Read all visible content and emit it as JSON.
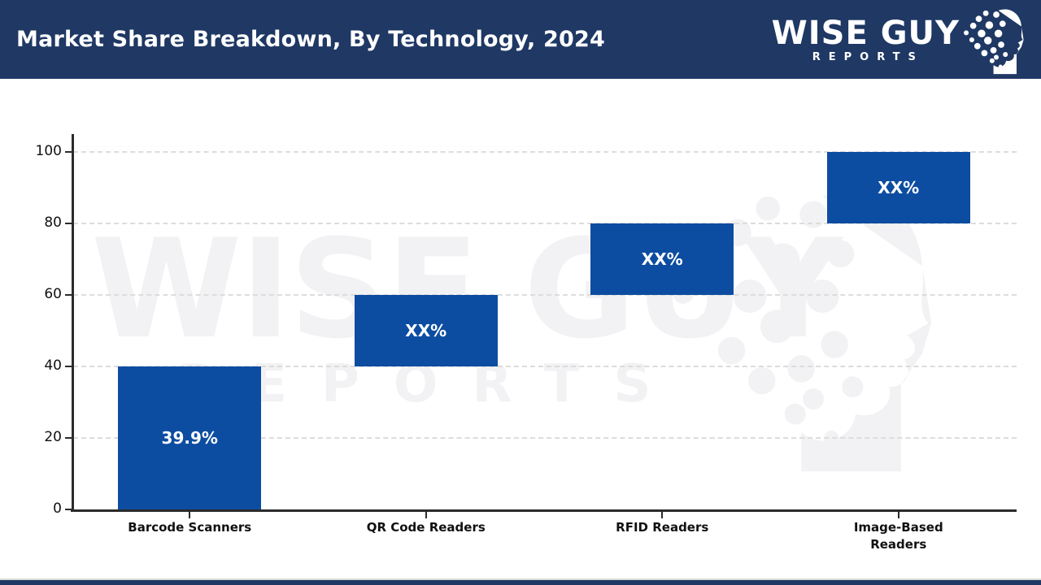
{
  "header": {
    "title": "Market Share Breakdown, By Technology, 2024",
    "bg_color": "#1f3864",
    "logo": {
      "name": "WISE GUY",
      "subtext": "REPORTS"
    }
  },
  "watermark": {
    "line1": "WISE GUY",
    "line2": "REPORTS"
  },
  "chart_data": {
    "type": "bar",
    "subtype": "waterfall",
    "title": "Market Share Breakdown, By Technology, 2024",
    "categories": [
      "Barcode Scanners",
      "QR Code Readers",
      "RFID Readers",
      "Image-Based Readers"
    ],
    "tick_labels": [
      "Barcode Scanners",
      "QR Code Readers",
      "RFID Readers",
      "Image-Based\nReaders"
    ],
    "segments": [
      {
        "category": "Barcode Scanners",
        "start": 0,
        "end": 39.9,
        "label": "39.9%"
      },
      {
        "category": "QR Code Readers",
        "start": 39.9,
        "end": 60,
        "label": "XX%"
      },
      {
        "category": "RFID Readers",
        "start": 60,
        "end": 80,
        "label": "XX%"
      },
      {
        "category": "Image-Based Readers",
        "start": 80,
        "end": 100,
        "label": "XX%"
      }
    ],
    "values_displayed": [
      "39.9%",
      "XX%",
      "XX%",
      "XX%"
    ],
    "xlabel": "",
    "ylabel": "",
    "y_ticks": [
      0,
      20,
      40,
      60,
      80,
      100
    ],
    "ylim": [
      0,
      105
    ],
    "grid": {
      "horizontal": true,
      "style": "dashed",
      "color": "#dcdcdc"
    },
    "legend": "none",
    "bar_color": "#0d4da1",
    "bar_label_color": "#ffffff",
    "axis_color": "#2b2b2b"
  }
}
